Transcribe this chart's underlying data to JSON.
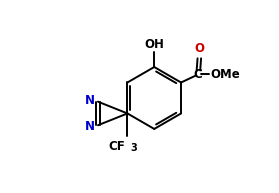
{
  "background_color": "#ffffff",
  "line_color": "#000000",
  "N_color": "#0000cd",
  "O_color": "#cc0000",
  "lw": 1.4,
  "figsize": [
    2.79,
    1.93
  ],
  "dpi": 100,
  "xlim": [
    0,
    9
  ],
  "ylim": [
    0,
    6.5
  ]
}
